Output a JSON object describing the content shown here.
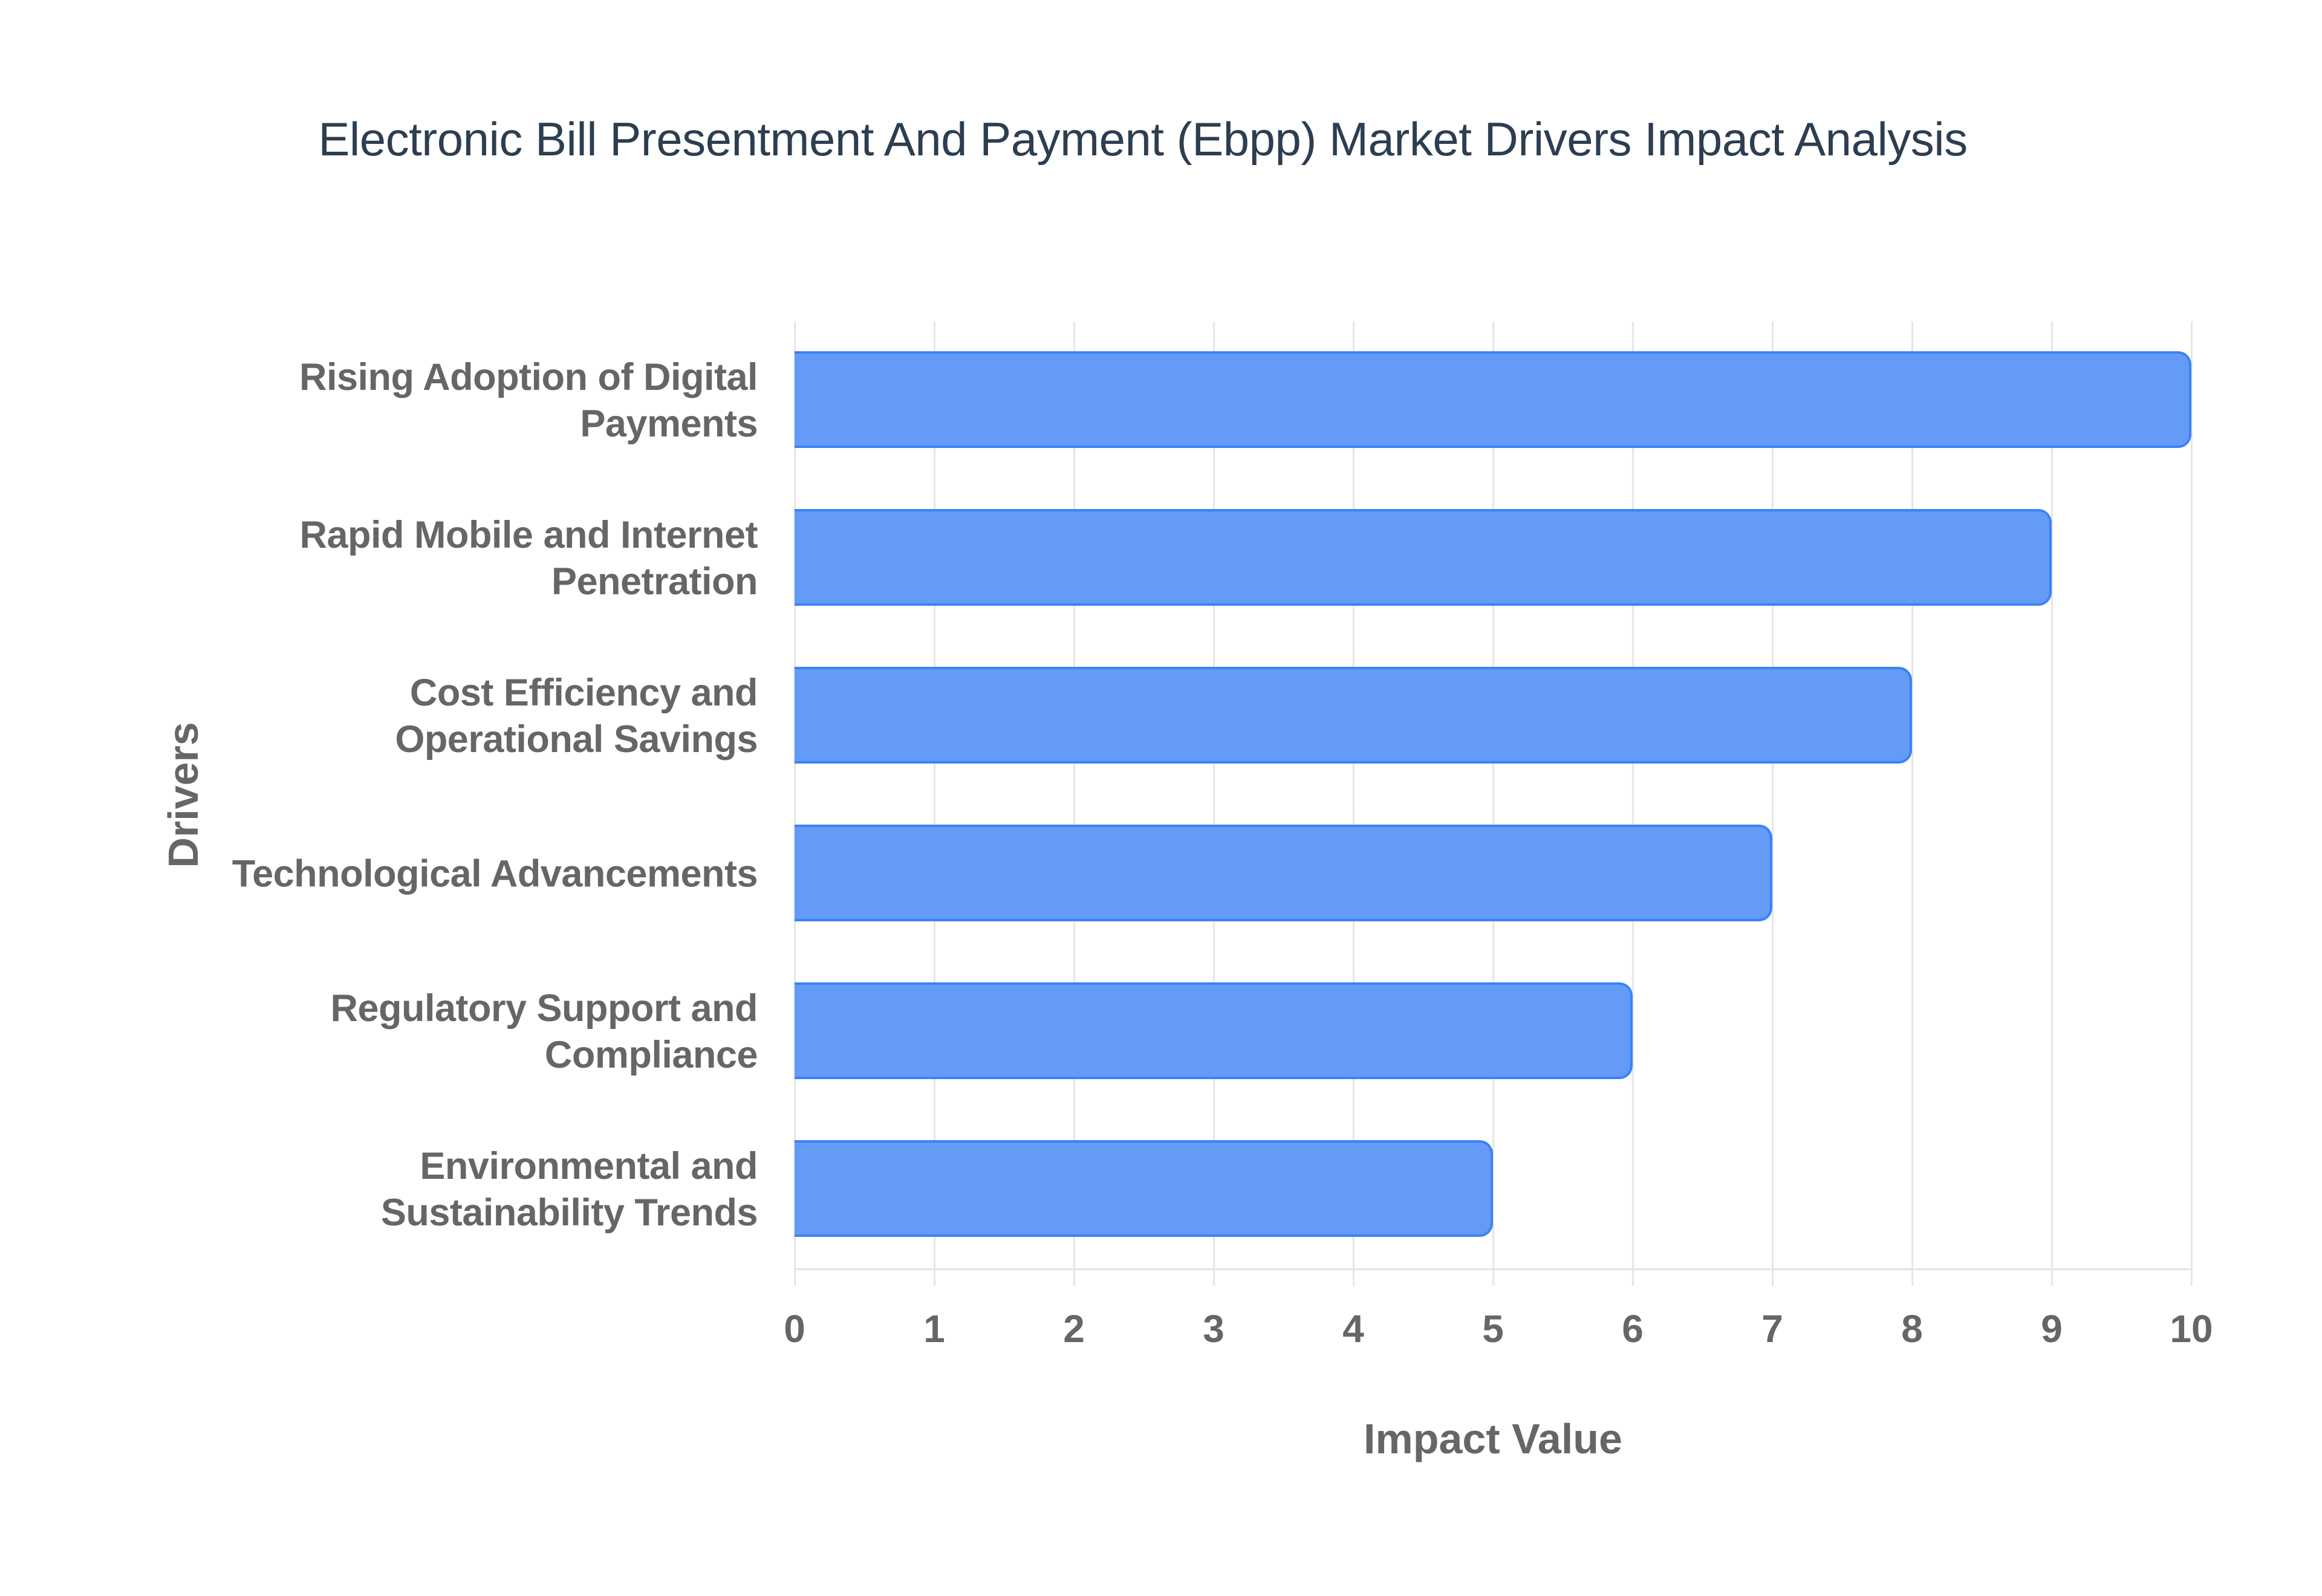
{
  "chart": {
    "title": "Electronic Bill Presentment And Payment (Ebpp) Market Drivers Impact Analysis",
    "x_axis_title": "Impact Value",
    "y_axis_title": "Drivers",
    "x_ticks": [
      "0",
      "1",
      "2",
      "3",
      "4",
      "5",
      "6",
      "7",
      "8",
      "9",
      "10"
    ],
    "categories": [
      "Rising Adoption of Digital Payments",
      "Rapid Mobile and Internet Penetration",
      "Cost Efficiency and Operational Savings",
      "Technological Advancements",
      "Regulatory Support and Compliance",
      "Environmental and Sustainability Trends"
    ],
    "category_label_lines": [
      [
        "Rising Adoption of Digital",
        "Payments"
      ],
      [
        "Rapid Mobile and Internet",
        "Penetration"
      ],
      [
        "Cost Efficiency and",
        "Operational Savings"
      ],
      [
        "Technological Advancements"
      ],
      [
        "Regulatory Support and",
        "Compliance"
      ],
      [
        "Environmental and",
        "Sustainability Trends"
      ]
    ],
    "colors": {
      "bar_fill": "#639bf6",
      "bar_border": "#3b82f6",
      "title": "#2c3e50",
      "axis_text": "#666666",
      "grid": "#e6e6e6"
    }
  },
  "chart_data": {
    "type": "bar",
    "orientation": "horizontal",
    "title": "Electronic Bill Presentment And Payment (Ebpp) Market Drivers Impact Analysis",
    "xlabel": "Impact Value",
    "ylabel": "Drivers",
    "categories": [
      "Rising Adoption of Digital Payments",
      "Rapid Mobile and Internet Penetration",
      "Cost Efficiency and Operational Savings",
      "Technological Advancements",
      "Regulatory Support and Compliance",
      "Environmental and Sustainability Trends"
    ],
    "values": [
      10,
      9,
      8,
      7,
      6,
      5
    ],
    "xlim": [
      0,
      10
    ],
    "x_ticks": [
      0,
      1,
      2,
      3,
      4,
      5,
      6,
      7,
      8,
      9,
      10
    ],
    "grid": true,
    "legend": null
  }
}
